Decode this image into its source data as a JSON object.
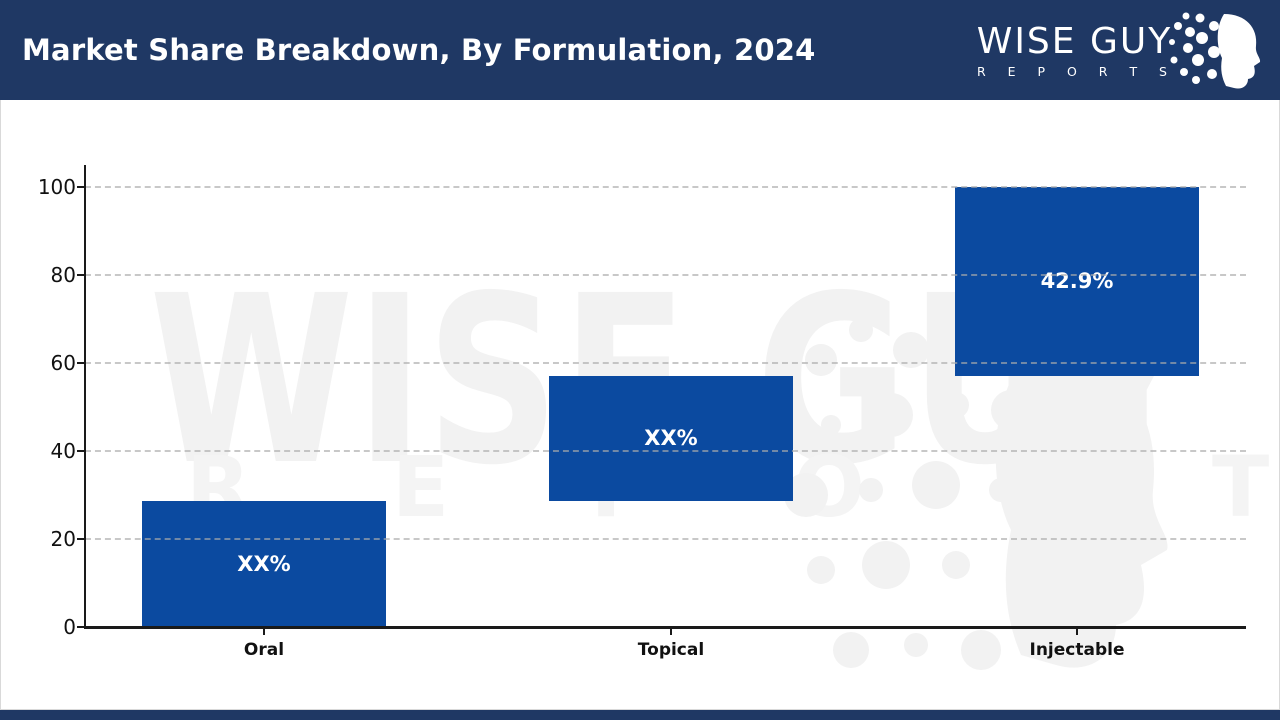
{
  "header": {
    "title": "Market Share Breakdown, By Formulation, 2024",
    "logo": {
      "line1": "WISE GUY",
      "line2": "R E P O R T S"
    }
  },
  "watermark": {
    "line1": "WISE GUY",
    "line2": "R E P O R T S"
  },
  "colors": {
    "header_bg": "#1f3864",
    "bar_blue": "#0b4aa0",
    "grid_gray": "#c8c8c8",
    "watermark_gray": "#f2f2f2"
  },
  "chart_data": {
    "type": "bar",
    "subtype": "floating-waterfall",
    "title": "Market Share Breakdown, By Formulation, 2024",
    "categories": [
      "Oral",
      "Topical",
      "Injectable"
    ],
    "series": [
      {
        "name": "Market Share (%)",
        "starts": [
          0,
          28.6,
          57.1
        ],
        "values": [
          28.6,
          28.5,
          42.9
        ]
      }
    ],
    "bar_labels": [
      "XX%",
      "XX%",
      "42.9%"
    ],
    "xlabel": "",
    "ylabel": "",
    "ylim": [
      0,
      100
    ],
    "yticks": [
      0,
      20,
      40,
      60,
      80,
      100
    ],
    "grid": "horizontal-dashed",
    "legend": "none",
    "bar_color": "#0b4aa0",
    "label_color": "#ffffff"
  }
}
